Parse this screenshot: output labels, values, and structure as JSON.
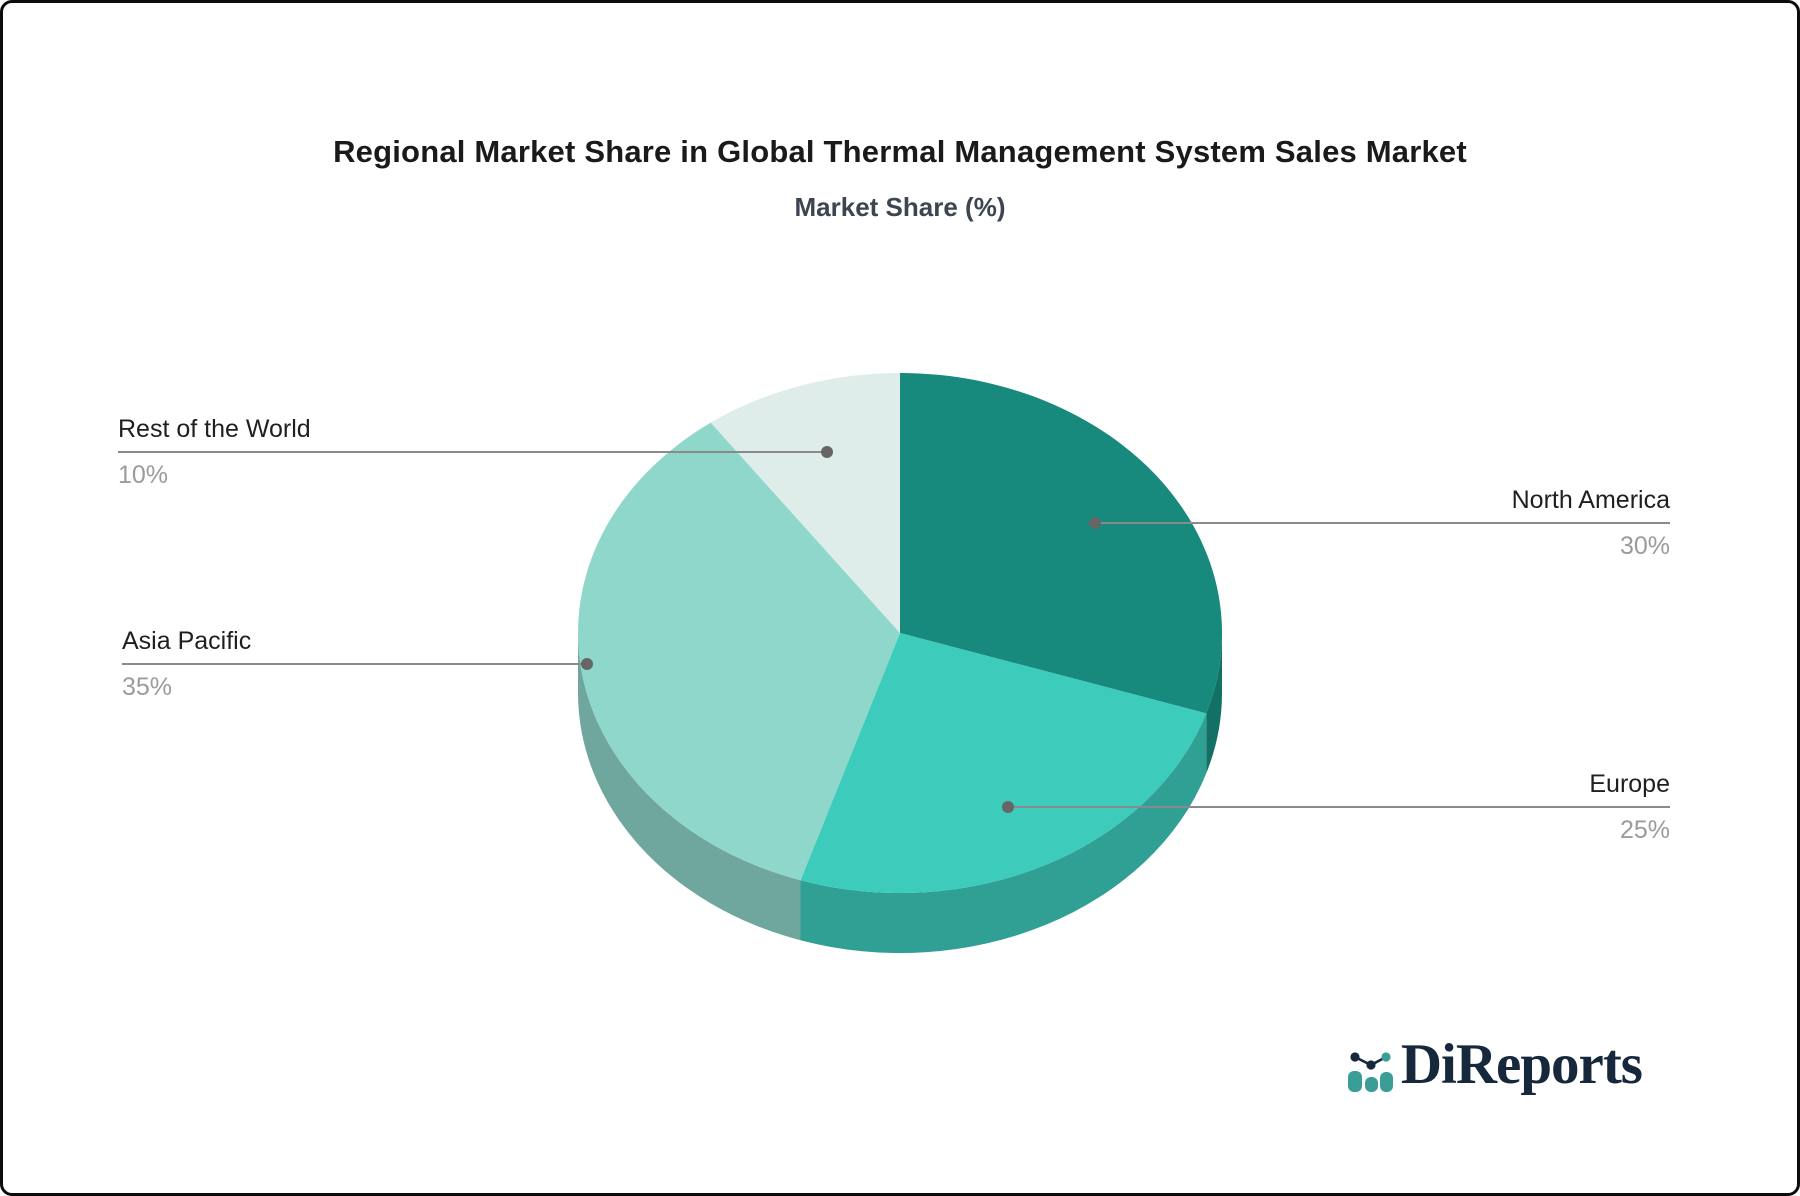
{
  "title": "Regional Market Share in Global Thermal Management System Sales Market",
  "subtitle": "Market Share (%)",
  "brand": {
    "name": "DiReports",
    "navy": "#16283c",
    "teal": "#3a9e96"
  },
  "chart_data": {
    "type": "pie",
    "style": "3d",
    "title": "Regional Market Share in Global Thermal Management System Sales Market",
    "subtitle": "Market Share (%)",
    "unit": "%",
    "direction": "clockwise",
    "start_angle_deg": 0,
    "legend_position": "none",
    "label_style": "leader-lines",
    "leader_line_color": "#8a8a8a",
    "leader_dot_color": "#666666",
    "series": [
      {
        "label": "North America",
        "value": 30,
        "display": "30%",
        "color": "#17897d",
        "side_color": "#127065"
      },
      {
        "label": "Europe",
        "value": 25,
        "display": "25%",
        "color": "#3dcbbc",
        "side_color": "#2fa093"
      },
      {
        "label": "Asia Pacific",
        "value": 35,
        "display": "35%",
        "color": "#8fd6cb",
        "side_color": "#6fa69d"
      },
      {
        "label": "Rest of the World",
        "value": 10,
        "display": "10%",
        "color": "#deedea",
        "side_color": "#b9cfcb"
      }
    ]
  }
}
